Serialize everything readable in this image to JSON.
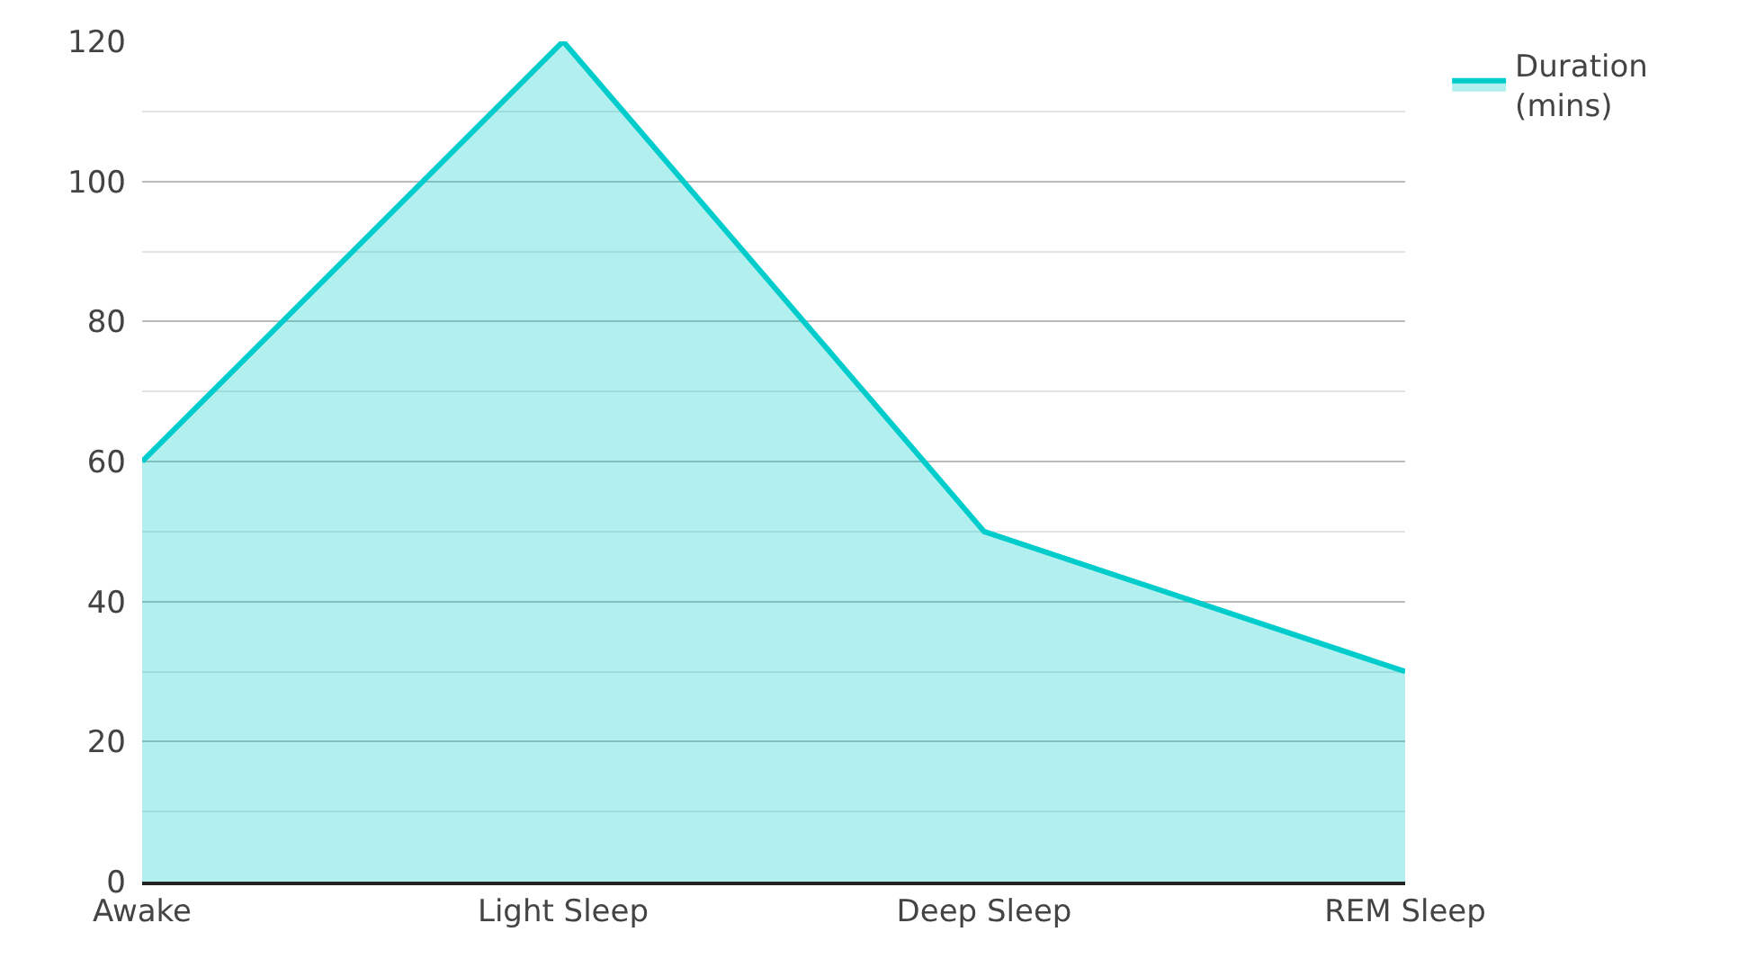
{
  "chart_data": {
    "type": "area",
    "categories": [
      "Awake",
      "Light Sleep",
      "Deep Sleep",
      "REM Sleep"
    ],
    "series": [
      {
        "name": "Duration (mins)",
        "color": "#00cccc",
        "values": [
          60,
          120,
          50,
          30
        ]
      }
    ],
    "ylim": [
      0,
      120
    ],
    "yticks": [
      0,
      20,
      40,
      60,
      80,
      100,
      120
    ],
    "grid": "y",
    "legend": "top right",
    "marker": "none",
    "line_style": "solid"
  }
}
